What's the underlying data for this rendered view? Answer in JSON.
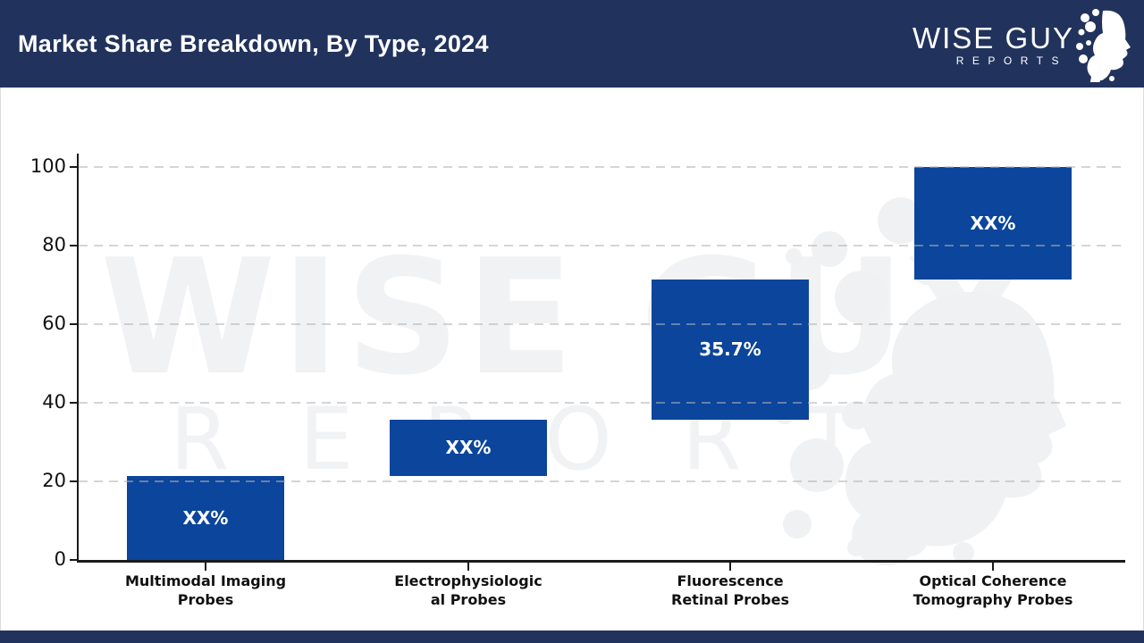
{
  "header": {
    "title": "Market Share Breakdown, By Type, 2024",
    "logo_name": "WISE GUY",
    "logo_sub": "REPORTS"
  },
  "watermark": {
    "line1": "WISE GUY",
    "line2": "REPORTS"
  },
  "chart_data": {
    "type": "bar",
    "subtype": "waterfall-floating-bars",
    "title": "Market Share Breakdown, By Type, 2024",
    "categories": [
      "Multimodal Imaging Probes",
      "Electrophysiological Probes",
      "Fluorescence Retinal Probes",
      "Optical Coherence Tomography Probes"
    ],
    "category_lines": [
      [
        "Multimodal Imaging",
        "Probes"
      ],
      [
        "Electrophysiologic",
        "al Probes"
      ],
      [
        "Fluorescence",
        "Retinal Probes"
      ],
      [
        "Optical Coherence",
        "Tomography Probes"
      ]
    ],
    "segments": [
      {
        "start": 0,
        "end": 21.5,
        "label": "XX%"
      },
      {
        "start": 21.5,
        "end": 35.7,
        "label": "XX%"
      },
      {
        "start": 35.7,
        "end": 71.4,
        "label": "35.7%"
      },
      {
        "start": 71.4,
        "end": 100,
        "label": "XX%"
      }
    ],
    "xlabel": "",
    "ylabel": "",
    "ylim": [
      0,
      100
    ],
    "yticks": [
      0,
      20,
      40,
      60,
      80,
      100
    ],
    "grid": "horizontal-dashed",
    "legend": "none"
  },
  "colors": {
    "header_bg": "#21335C",
    "footer_bg": "#21335C",
    "bar": "#0B459C",
    "bar_label": "#ffffff",
    "axis": "#1a1a1a",
    "grid": "#d6d6d6",
    "watermark": "#f1f2f4"
  }
}
